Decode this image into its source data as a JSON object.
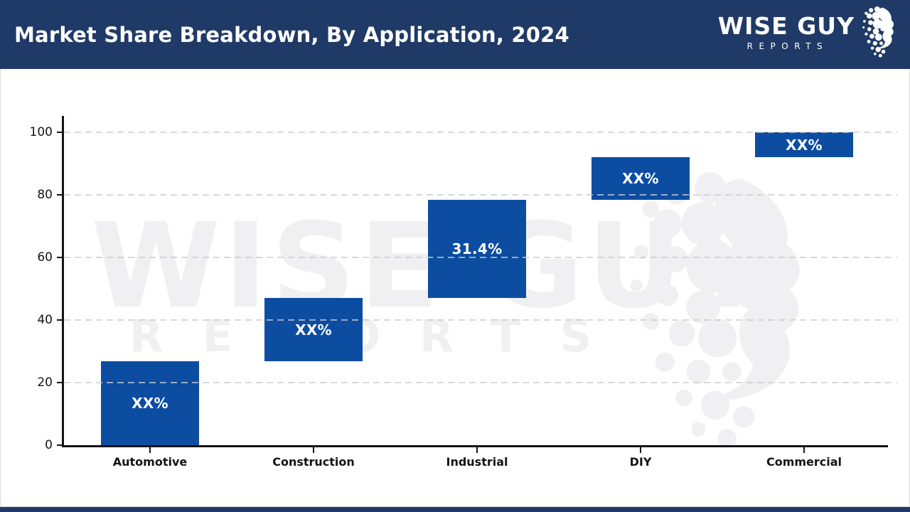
{
  "header": {
    "title": "Market Share Breakdown, By Application, 2024",
    "background": "#203A67",
    "logo": {
      "line1": "WISE GUY",
      "line2": "REPORTS"
    }
  },
  "watermark": {
    "line1": "WISE GUY",
    "line2": "REPORTS"
  },
  "footer": {
    "background": "#203A67"
  },
  "chart_data": {
    "type": "bar",
    "subtype": "waterfall",
    "title": "Market Share Breakdown, By Application, 2024",
    "xlabel": "",
    "ylabel": "",
    "categories": [
      "Automotive",
      "Construction",
      "Industrial",
      "DIY",
      "Commercial"
    ],
    "segments": [
      {
        "category": "Automotive",
        "start": 0,
        "end": 26.8,
        "label": "XX%"
      },
      {
        "category": "Construction",
        "start": 26.8,
        "end": 47.0,
        "label": "XX%"
      },
      {
        "category": "Industrial",
        "start": 47.0,
        "end": 78.4,
        "label": "31.4%"
      },
      {
        "category": "DIY",
        "start": 78.4,
        "end": 92.0,
        "label": "XX%"
      },
      {
        "category": "Commercial",
        "start": 92.0,
        "end": 100.0,
        "label": "XX%"
      }
    ],
    "yticks": [
      0,
      20,
      40,
      60,
      80,
      100
    ],
    "ylim": [
      0,
      105
    ],
    "grid": "horizontal-dashed",
    "legend": "none",
    "bar_color": "#0C4DA2",
    "bar_label_color": "#ffffff",
    "axis_color": "#141414"
  }
}
